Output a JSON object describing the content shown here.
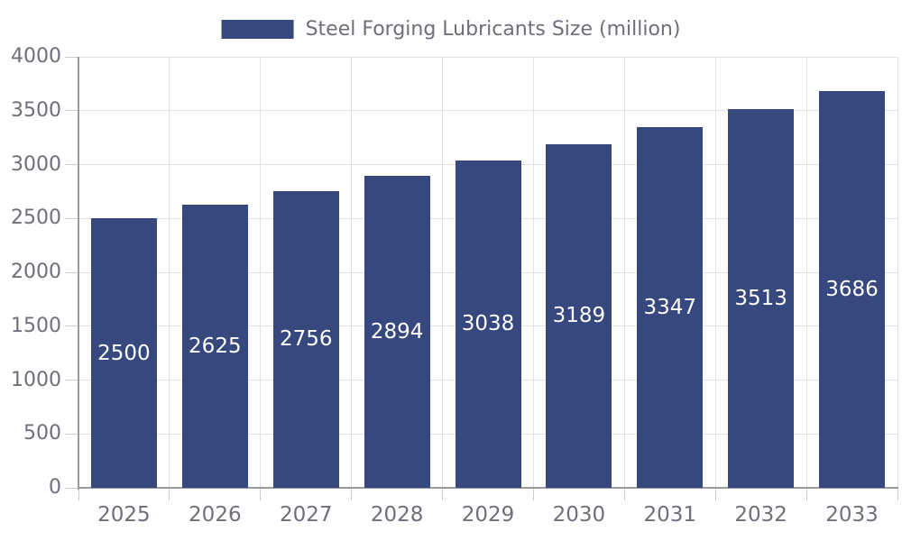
{
  "chart_data": {
    "type": "bar",
    "title": "",
    "legend_label": "Steel Forging Lubricants Size (million)",
    "legend_position": "top",
    "categories": [
      "2025",
      "2026",
      "2027",
      "2028",
      "2029",
      "2030",
      "2031",
      "2032",
      "2033"
    ],
    "values": [
      2500,
      2625,
      2756,
      2894,
      3038,
      3189,
      3347,
      3513,
      3686
    ],
    "value_labels": [
      "2500",
      "2625",
      "2756",
      "2894",
      "3038",
      "3189",
      "3347",
      "3513",
      "3686"
    ],
    "xlabel": "",
    "ylabel": "",
    "ylim": [
      0,
      4000
    ],
    "ytick_step": 500,
    "ytick_labels": [
      "0",
      "500",
      "1000",
      "1500",
      "2000",
      "2500",
      "3000",
      "3500",
      "4000"
    ],
    "grid": true,
    "colors": {
      "bar": "#36487d",
      "bar_label": "#ffffff",
      "axis_text": "#6e7079",
      "grid_line": "#e3e3e3",
      "axis_line": "#9a9a9a",
      "tick": "#cccccc",
      "background": "#ffffff"
    }
  }
}
